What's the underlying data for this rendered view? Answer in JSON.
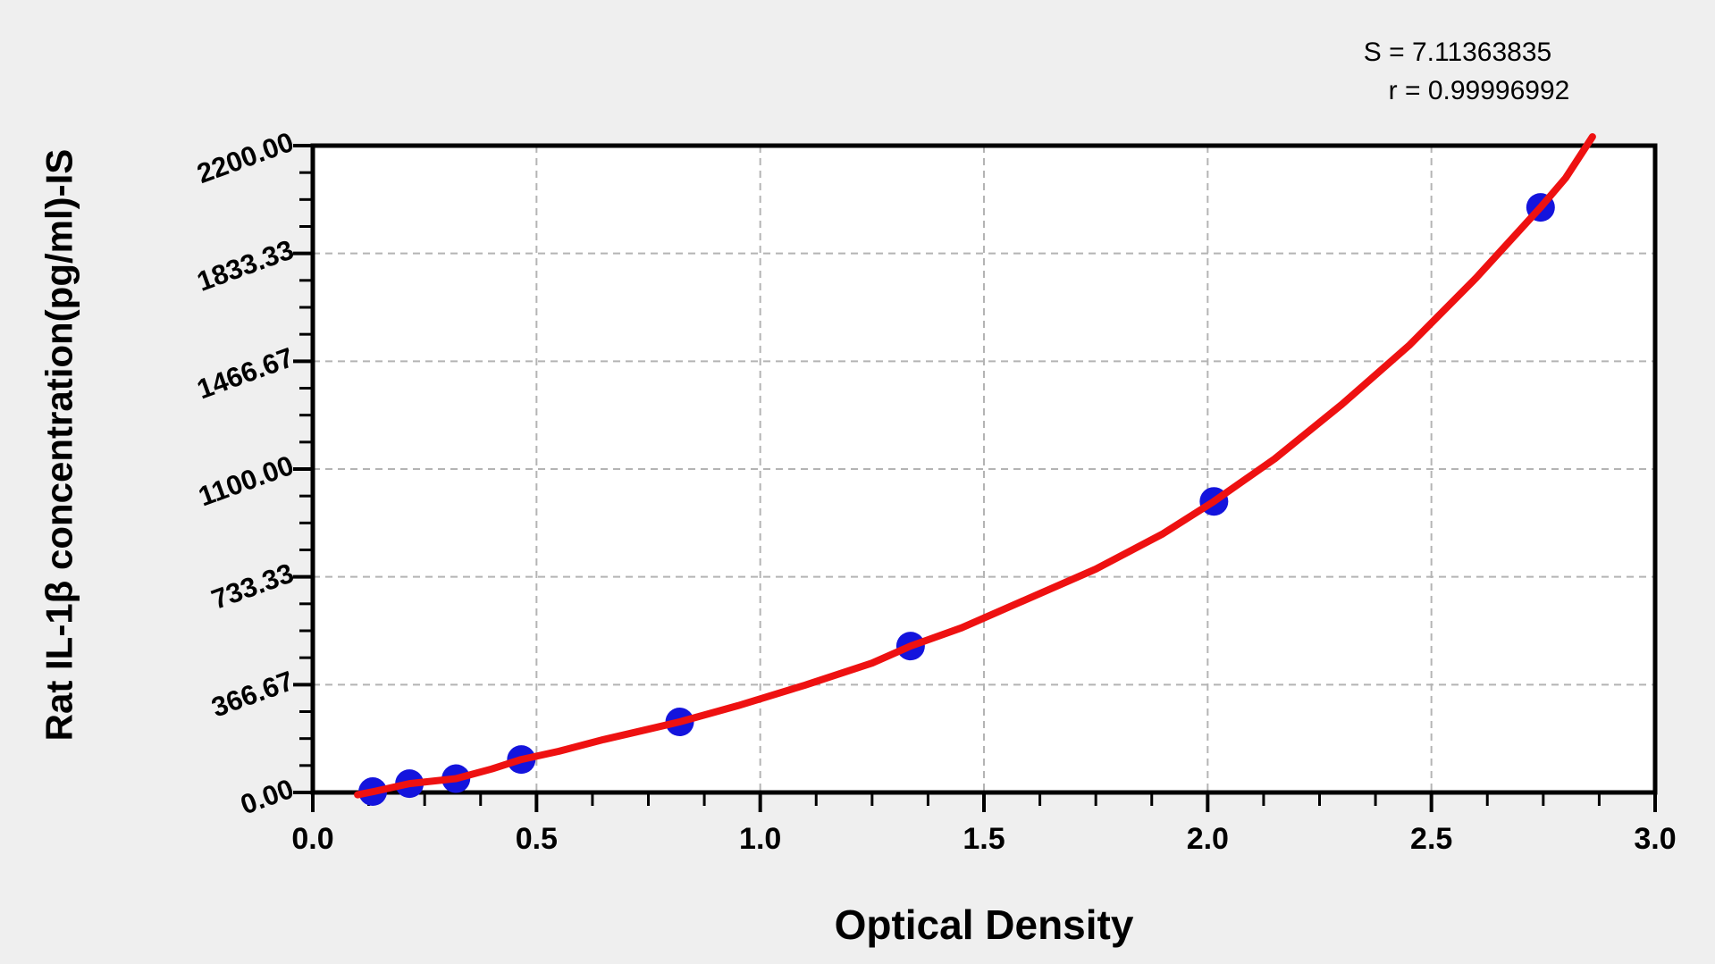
{
  "stats": {
    "s_label": "S = 7.11363835",
    "r_label": "r = 0.99996992"
  },
  "chart_data": {
    "type": "scatter",
    "title": "",
    "xlabel": "Optical Density",
    "ylabel": "Rat IL-1β concentration(pg/ml)-IS",
    "xlim": [
      0,
      3
    ],
    "ylim": [
      0,
      2200
    ],
    "x_ticks": {
      "values": [
        0,
        0.5,
        1.0,
        1.5,
        2.0,
        2.5,
        3.0
      ],
      "labels": [
        "0.0",
        "0.5",
        "1.0",
        "1.5",
        "2.0",
        "2.5",
        "3.0"
      ],
      "minor_step": 0.125
    },
    "y_ticks": {
      "values": [
        0,
        366.6667,
        733.3333,
        1100,
        1466.6667,
        1833.3333,
        2200
      ],
      "labels": [
        "0.00",
        "366.67",
        "733.33",
        "1100.00",
        "1466.67",
        "1833.33",
        "2200.00"
      ],
      "minor_step": 91.6667
    },
    "grid": {
      "style": "dashed",
      "on": true
    },
    "legend": null,
    "points": [
      [
        0.134,
        3
      ],
      [
        0.216,
        30
      ],
      [
        0.32,
        47
      ],
      [
        0.466,
        112
      ],
      [
        0.82,
        240
      ],
      [
        1.336,
        498
      ],
      [
        2.014,
        990
      ],
      [
        2.744,
        1990
      ]
    ],
    "fit_curve": [
      [
        0.1,
        -8
      ],
      [
        0.136,
        3
      ],
      [
        0.216,
        30
      ],
      [
        0.32,
        47
      ],
      [
        0.4,
        80
      ],
      [
        0.466,
        112
      ],
      [
        0.55,
        140
      ],
      [
        0.65,
        180
      ],
      [
        0.75,
        215
      ],
      [
        0.82,
        240
      ],
      [
        0.95,
        295
      ],
      [
        1.1,
        365
      ],
      [
        1.25,
        440
      ],
      [
        1.336,
        498
      ],
      [
        1.45,
        560
      ],
      [
        1.6,
        660
      ],
      [
        1.75,
        760
      ],
      [
        1.9,
        880
      ],
      [
        2.014,
        990
      ],
      [
        2.15,
        1135
      ],
      [
        2.3,
        1320
      ],
      [
        2.45,
        1520
      ],
      [
        2.6,
        1750
      ],
      [
        2.744,
        1990
      ],
      [
        2.8,
        2090
      ],
      [
        2.86,
        2230
      ]
    ],
    "colors": {
      "curve": "#ee1111",
      "marker": "#1414dd",
      "grid": "#b4b4b4",
      "axis": "#000000",
      "plot_bg": "#ffffff",
      "page_bg": "#efefef"
    }
  }
}
